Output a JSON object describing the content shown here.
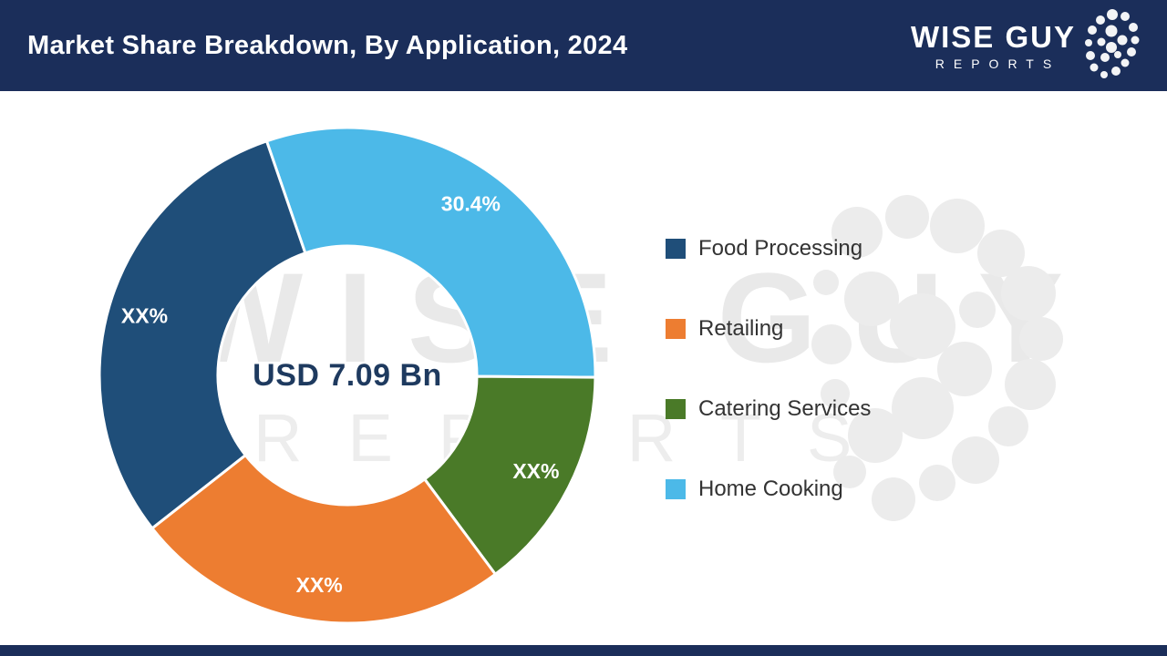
{
  "header": {
    "title": "Market Share Breakdown, By Application, 2024",
    "logo": {
      "line1": "WISE GUY",
      "line2": "REPORTS"
    }
  },
  "watermark": {
    "line1": "WISE GUY",
    "line2": "REPORTS"
  },
  "chart_data": {
    "type": "pie",
    "variant": "donut",
    "title": "Market Share Breakdown, By Application, 2024",
    "center_label": "USD 7.09 Bn",
    "unit": "%",
    "rotation_deg": -19,
    "legend_position": "right",
    "segments": [
      {
        "label": "Food Processing",
        "value_pct": 30.3,
        "display_label": "XX%",
        "color": "#1f4e79"
      },
      {
        "label": "Retailing",
        "value_pct": 24.6,
        "display_label": "XX%",
        "color": "#ed7d31"
      },
      {
        "label": "Catering Services",
        "value_pct": 14.7,
        "display_label": "XX%",
        "color": "#4a7a28"
      },
      {
        "label": "Home Cooking",
        "value_pct": 30.4,
        "display_label": "30.4%",
        "color": "#4cb9e8"
      }
    ]
  },
  "colors": {
    "brand_navy": "#1b2e5a",
    "background": "#ffffff",
    "watermark_gray": "#e9e9e9",
    "segment_label_text": "#ffffff",
    "center_label_text": "#1e3a5f",
    "legend_text": "#333333"
  }
}
